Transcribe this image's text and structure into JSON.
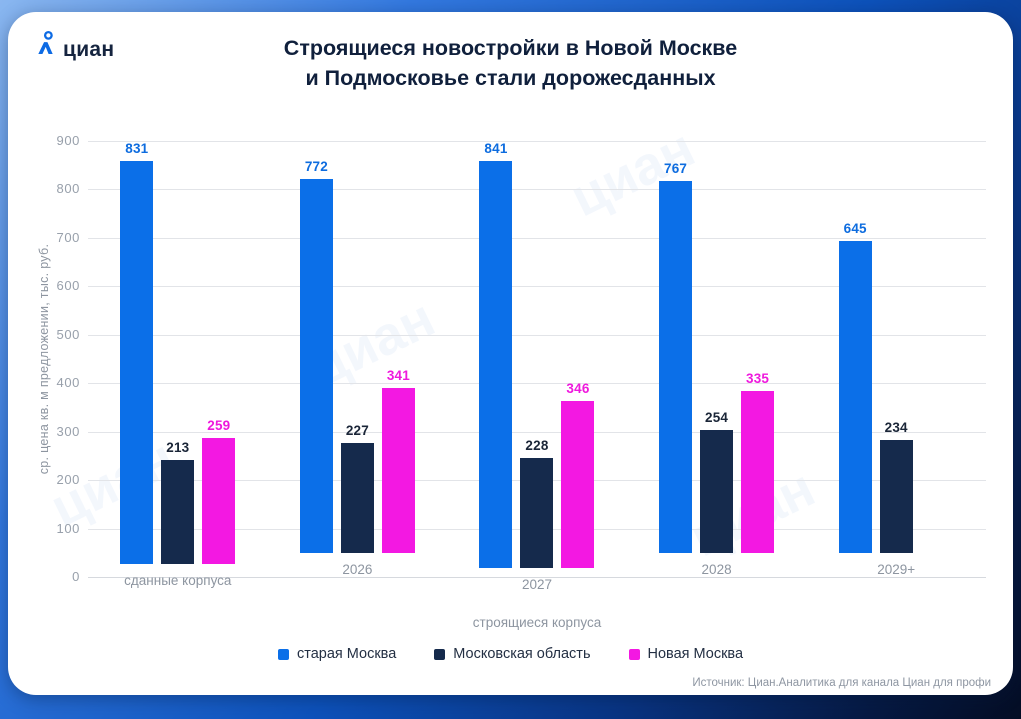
{
  "brand": {
    "logo_text": "циан",
    "logo_blue": "#0e6be4",
    "logo_text_color": "#15243f"
  },
  "title": {
    "line1": "Строящиеся новостройки в Новой Москве",
    "line2": "и Подмосковье стали дорожесданных"
  },
  "chart_data": {
    "type": "bar",
    "title": "Строящиеся новостройки в Новой Москве и Подмосковье стали дорожесданных",
    "categories": [
      "сданные корпуса",
      "2026",
      "2027",
      "2028",
      "2029+"
    ],
    "series": [
      {
        "name": "старая Москва",
        "color": "#0b6fe8",
        "label_color": "#0d6cdf",
        "values": [
          831,
          772,
          841,
          767,
          645
        ]
      },
      {
        "name": "Московская область",
        "color": "#152a4c",
        "label_color": "#1a2537",
        "values": [
          213,
          227,
          228,
          254,
          234
        ]
      },
      {
        "name": "Новая Москва",
        "color": "#f318e2",
        "label_color": "#ef19dd",
        "values": [
          259,
          341,
          346,
          335,
          null
        ]
      }
    ],
    "ylabel": "ср. цена кв. м предложении, тыс. руб.",
    "xlabel": "строящиеся корпуса",
    "ylim": [
      0,
      900
    ],
    "yticks": [
      900,
      800,
      700,
      600,
      500,
      400,
      300,
      200,
      100,
      0
    ],
    "grid": true,
    "legend_position": "bottom"
  },
  "watermark": {
    "text": "циан"
  },
  "footer": {
    "source": "Источник: Циан.Аналитика для канала Циан для профи"
  }
}
